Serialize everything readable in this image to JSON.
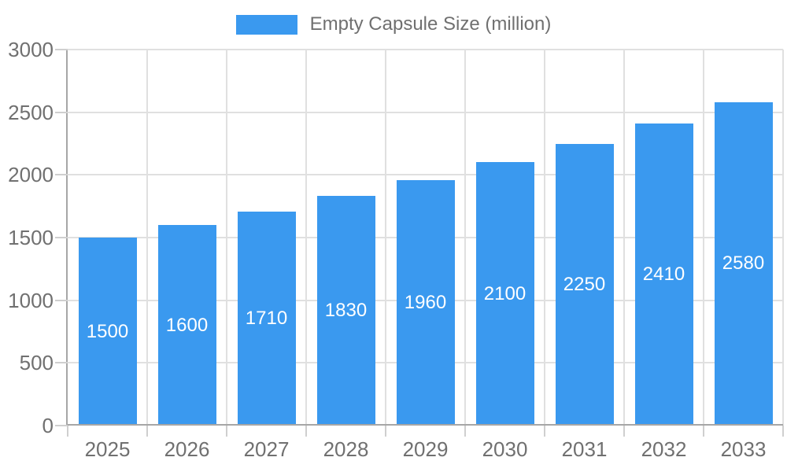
{
  "legend": {
    "label": "Empty Capsule Size (million)"
  },
  "colors": {
    "bar": "#3A99EF",
    "grid": "#E0E0E0",
    "axis": "#A6A6A6",
    "tick": "#CFCFCF",
    "label_text": "#707070",
    "bar_label_text": "#FFFFFF",
    "background": "#FFFFFF"
  },
  "chart_data": {
    "type": "bar",
    "legend_position": "top",
    "grid": true,
    "bar_value_labels": true,
    "categories": [
      "2025",
      "2026",
      "2027",
      "2028",
      "2029",
      "2030",
      "2031",
      "2032",
      "2033"
    ],
    "series": [
      {
        "name": "Empty Capsule Size (million)",
        "values": [
          1500,
          1600,
          1710,
          1830,
          1960,
          2100,
          2250,
          2410,
          2580
        ]
      }
    ],
    "ylim": [
      0,
      3000
    ],
    "yticks": [
      0,
      500,
      1000,
      1500,
      2000,
      2500,
      3000
    ]
  }
}
